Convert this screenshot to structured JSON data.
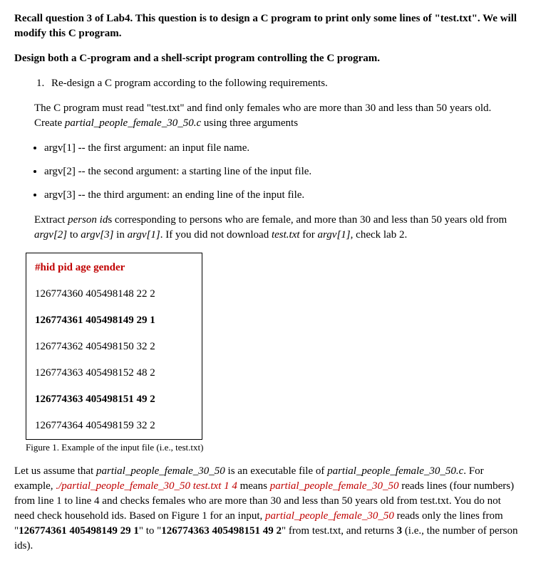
{
  "intro": {
    "line1a": "Recall question 3 of Lab4. This question is to design a C program to print only some lines of ",
    "line1q": "\"test.txt\"",
    "line1b": ". We will modify this C program.",
    "line2": "Design both a C-program and a shell-script program controlling the C program."
  },
  "steps": {
    "step1": "Re-design a C program according to the following requirements."
  },
  "desc1a": "The C program must read \"test.txt\" and find only females who are more than 30 and less than 50 years old. Create ",
  "desc1b": "partial_people_female_30_50.c",
  "desc1c": " using three arguments",
  "args": {
    "a1": "argv[1] -- the first argument: an input file name.",
    "a2": "argv[2] -- the second argument: a starting line of the input file.",
    "a3": "argv[3] -- the third argument: an ending line of the input file."
  },
  "extract": {
    "p1": "Extract ",
    "p2": "person id",
    "p3": "s corresponding to persons who are female, and more than 30 and less than 50 years old from ",
    "p4": "argv[2]",
    "p5": " to ",
    "p6": "argv[3]",
    "p7": " in ",
    "p8": "argv[1]",
    "p9": ". If you did not download ",
    "p10": "test.txt",
    "p11": " for ",
    "p12": "argv[1]",
    "p13": ", check lab 2."
  },
  "table": {
    "header": "#hid pid age gender",
    "rows": [
      {
        "text": "126774360 405498148 22 2",
        "bold": false
      },
      {
        "text": "126774361 405498149 29 1",
        "bold": true
      },
      {
        "text": "126774362 405498150 32 2",
        "bold": false
      },
      {
        "text": "126774363 405498152 48 2",
        "bold": false
      },
      {
        "text": "126774363 405498151 49 2",
        "bold": true
      },
      {
        "text": "126774364 405498159 32 2",
        "bold": false
      }
    ]
  },
  "caption": "Figure 1. Example of the input file (i.e., test.txt)",
  "closing": {
    "c1": "Let us assume that ",
    "c2": "partial_people_female_30_50",
    "c3": " is an executable file of ",
    "c4": "partial_people_female_30_50.c",
    "c5": ". For example, ",
    "c6": "./partial_people_female_30_50 test.txt 1 4",
    "c7": " means ",
    "c8": "partial_people_female_30_50",
    "c9": " reads lines (four numbers) from line 1 to line 4 and checks females who are more than 30 and less than 50 years old from test.txt. You do not need check household ids. Based on Figure 1 for an input, ",
    "c10": "partial_people_female_30_50",
    "c11": " reads only the lines from \"",
    "c12": "126774361 405498149 29 1",
    "c13": "\" to \"",
    "c14": "126774363 405498151 49 2",
    "c15": "\" from test.txt, and returns ",
    "c16": "3",
    "c17": " (i.e., the number of person ids)."
  }
}
